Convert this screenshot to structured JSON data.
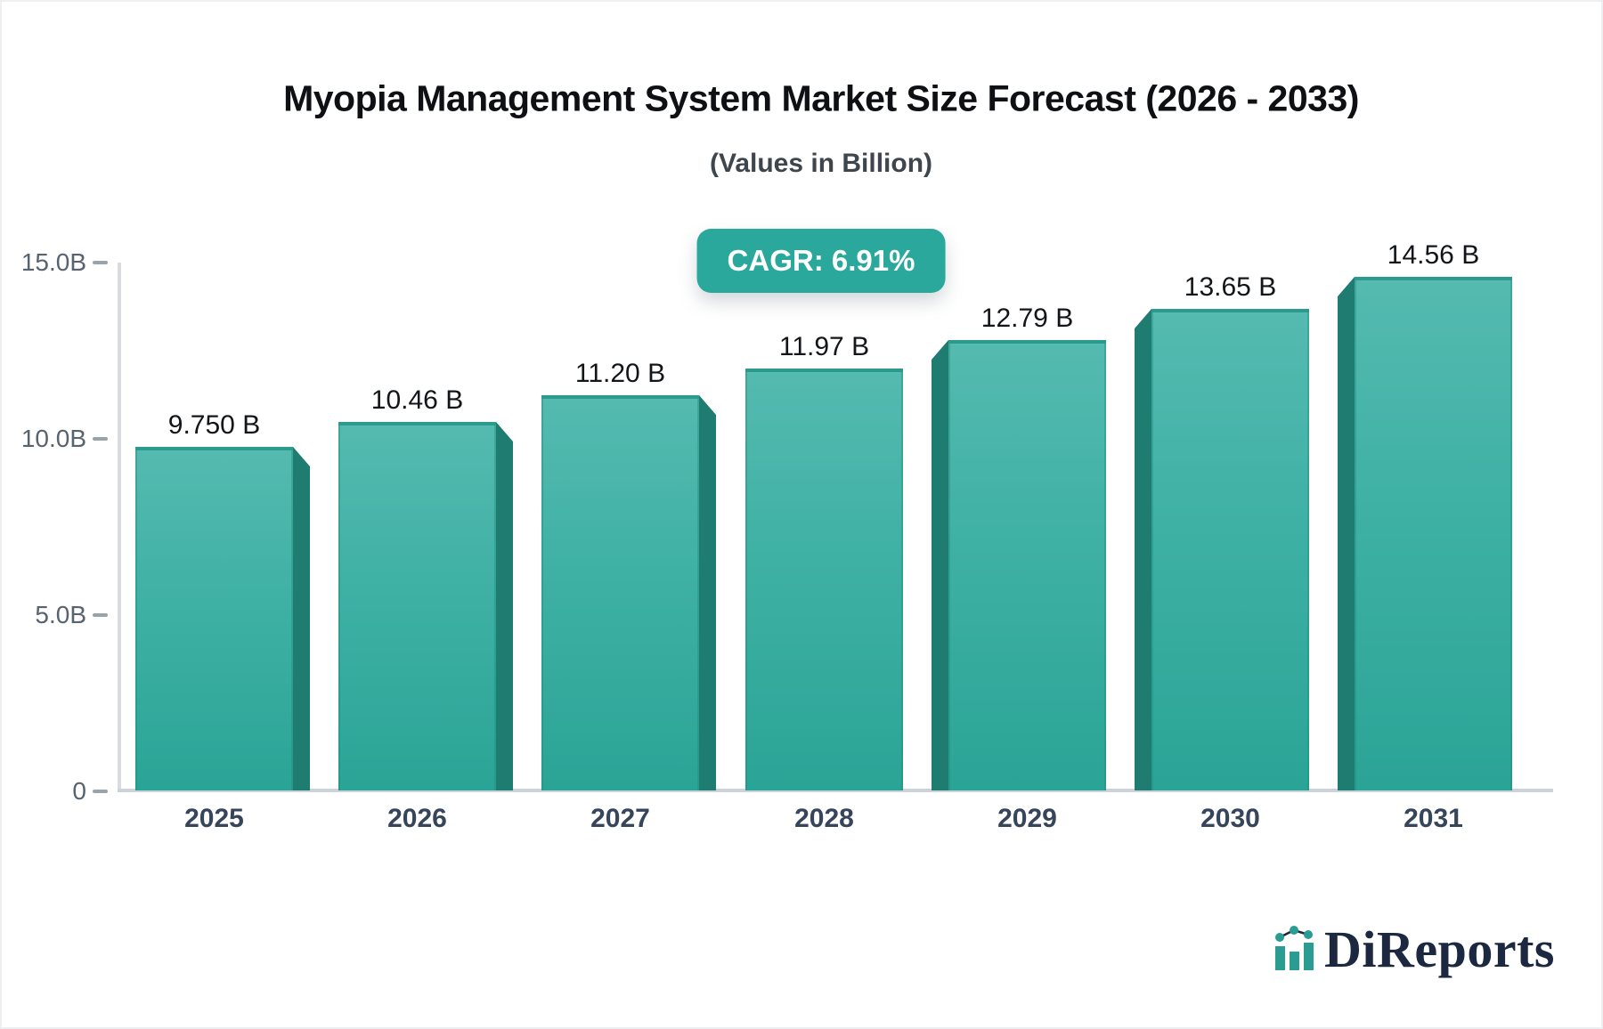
{
  "header": {
    "title": "Myopia Management System Market Size Forecast (2026 - 2033)",
    "subtitle": "(Values in Billion)"
  },
  "badge": {
    "label": "CAGR: 6.91%",
    "bg_color": "#2aa89c",
    "text_color": "#ffffff"
  },
  "chart_data": {
    "type": "bar",
    "title": "Myopia Management System Market Size Forecast (2026 - 2033)",
    "subtitle": "(Values in Billion)",
    "annotation": "CAGR: 6.91%",
    "categories": [
      "2025",
      "2026",
      "2027",
      "2028",
      "2029",
      "2030",
      "2031"
    ],
    "values": [
      9.75,
      10.46,
      11.2,
      11.97,
      12.79,
      13.65,
      14.56
    ],
    "value_labels": [
      "9.750 B",
      "10.46 B",
      "11.20 B",
      "11.97 B",
      "12.79 B",
      "13.65 B",
      "14.56 B"
    ],
    "xlabel": "",
    "ylabel": "",
    "ylim": [
      0,
      15
    ],
    "y_ticks": [
      {
        "label": "15.0B",
        "value": 15
      },
      {
        "label": "10.0B",
        "value": 10
      },
      {
        "label": "5.0B",
        "value": 5
      },
      {
        "label": "0",
        "value": 0
      }
    ],
    "grid": false,
    "legend": false,
    "bar_color_top": "#55bab0",
    "bar_color_bottom": "#2aa496",
    "bar_side_color": "#1f7c71"
  },
  "logo": {
    "text": "DiReports",
    "icon": "bar-chart-trend-icon",
    "text_color": "#1b2840",
    "accent_color": "#2a9c91"
  }
}
